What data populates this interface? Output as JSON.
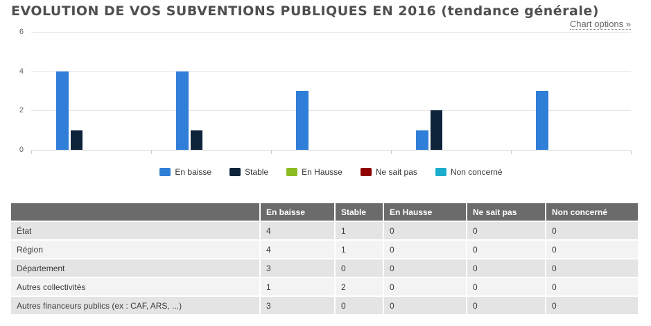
{
  "header": {
    "title": "EVOLUTION DE VOS SUBVENTIONS PUBLIQUES EN 2016 (tendance générale)",
    "chart_options_label": "Chart options »"
  },
  "colors": {
    "en_baisse": "#2f7ed8",
    "stable": "#0d233a",
    "en_hausse": "#8bbc21",
    "ne_sait_pas": "#910000",
    "non_concerne": "#1aadce",
    "table_header_bg": "#6b6b6b",
    "row_odd_bg": "#e4e4e4",
    "row_even_bg": "#f3f3f3"
  },
  "chart_data": {
    "type": "bar",
    "title": "EVOLUTION DE VOS SUBVENTIONS PUBLIQUES EN 2016 (tendance générale)",
    "xlabel": "",
    "ylabel": "",
    "ylim": [
      0,
      6
    ],
    "yticks": [
      0,
      2,
      4,
      6
    ],
    "grid": true,
    "legend_position": "bottom",
    "categories": [
      "État",
      "Région",
      "Département",
      "Autres collectivités",
      "Autres financeurs publics (ex : CAF, ARS, ...)"
    ],
    "series": [
      {
        "name": "En baisse",
        "color": "#2f7ed8",
        "values": [
          4,
          4,
          3,
          1,
          3
        ]
      },
      {
        "name": "Stable",
        "color": "#0d233a",
        "values": [
          1,
          1,
          0,
          2,
          0
        ]
      },
      {
        "name": "En Hausse",
        "color": "#8bbc21",
        "values": [
          0,
          0,
          0,
          0,
          0
        ]
      },
      {
        "name": "Ne sait pas",
        "color": "#910000",
        "values": [
          0,
          0,
          0,
          0,
          0
        ]
      },
      {
        "name": "Non concerné",
        "color": "#1aadce",
        "values": [
          0,
          0,
          0,
          0,
          0
        ]
      }
    ]
  },
  "table": {
    "columns": [
      "",
      "En baisse",
      "Stable",
      "En Hausse",
      "Ne sait pas",
      "Non concerné"
    ],
    "rows": [
      {
        "label": "État",
        "values": [
          "4",
          "1",
          "0",
          "0",
          "0"
        ]
      },
      {
        "label": "Région",
        "values": [
          "4",
          "1",
          "0",
          "0",
          "0"
        ]
      },
      {
        "label": "Département",
        "values": [
          "3",
          "0",
          "0",
          "0",
          "0"
        ]
      },
      {
        "label": "Autres collectivités",
        "values": [
          "1",
          "2",
          "0",
          "0",
          "0"
        ]
      },
      {
        "label": "Autres financeurs publics (ex : CAF, ARS, ...)",
        "values": [
          "3",
          "0",
          "0",
          "0",
          "0"
        ]
      }
    ]
  }
}
